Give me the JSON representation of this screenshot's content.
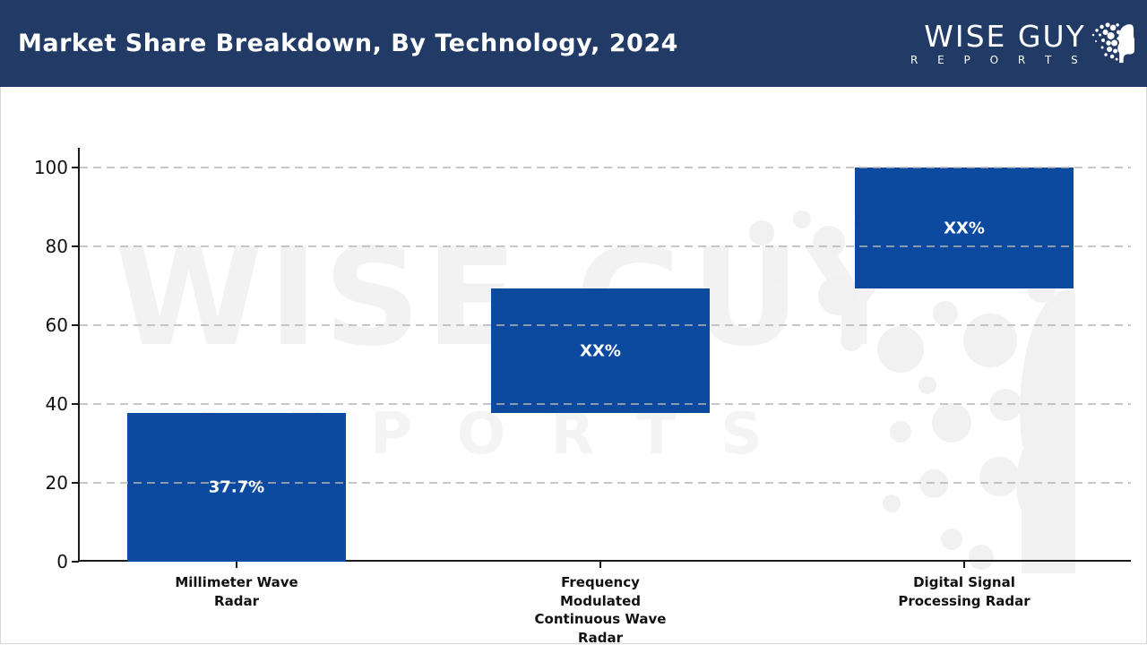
{
  "header": {
    "title": "Market Share Breakdown, By Technology, 2024",
    "logo": {
      "name": "WISE GUY",
      "subtitle": "R E P O R T S"
    }
  },
  "watermark": {
    "line1": "WISE GUY",
    "line2": "REPORTS"
  },
  "colors": {
    "header_bg": "#213a66",
    "bar": "#0b4a9e",
    "bar_label": "#ffffff",
    "axis": "#1a1a1a",
    "grid": "#c8c8c8",
    "watermark": "#f2f2f2"
  },
  "chart_data": {
    "type": "bar",
    "subtype": "stacked-percentage-waterfall",
    "title": "Market Share Breakdown, By Technology, 2024",
    "categories": [
      {
        "name": "Millimeter Wave Radar",
        "lines": [
          "Millimeter Wave",
          "Radar"
        ]
      },
      {
        "name": "Frequency Modulated Continuous Wave Radar",
        "lines": [
          "Frequency",
          "Modulated",
          "Continuous Wave",
          "Radar"
        ]
      },
      {
        "name": "Digital Signal Processing Radar",
        "lines": [
          "Digital Signal",
          "Processing Radar"
        ]
      }
    ],
    "segments": [
      {
        "category": "Millimeter Wave Radar",
        "label": "37.7%",
        "start": 0,
        "end": 37.7
      },
      {
        "category": "Frequency Modulated Continuous Wave Radar",
        "label": "XX%",
        "start": 37.7,
        "end": 69.3
      },
      {
        "category": "Digital Signal Processing Radar",
        "label": "XX%",
        "start": 69.3,
        "end": 100
      }
    ],
    "ylim": [
      0,
      100
    ],
    "yticks": [
      0,
      20,
      40,
      60,
      80,
      100
    ],
    "grid": "horizontal-dashed",
    "legend": "none"
  }
}
